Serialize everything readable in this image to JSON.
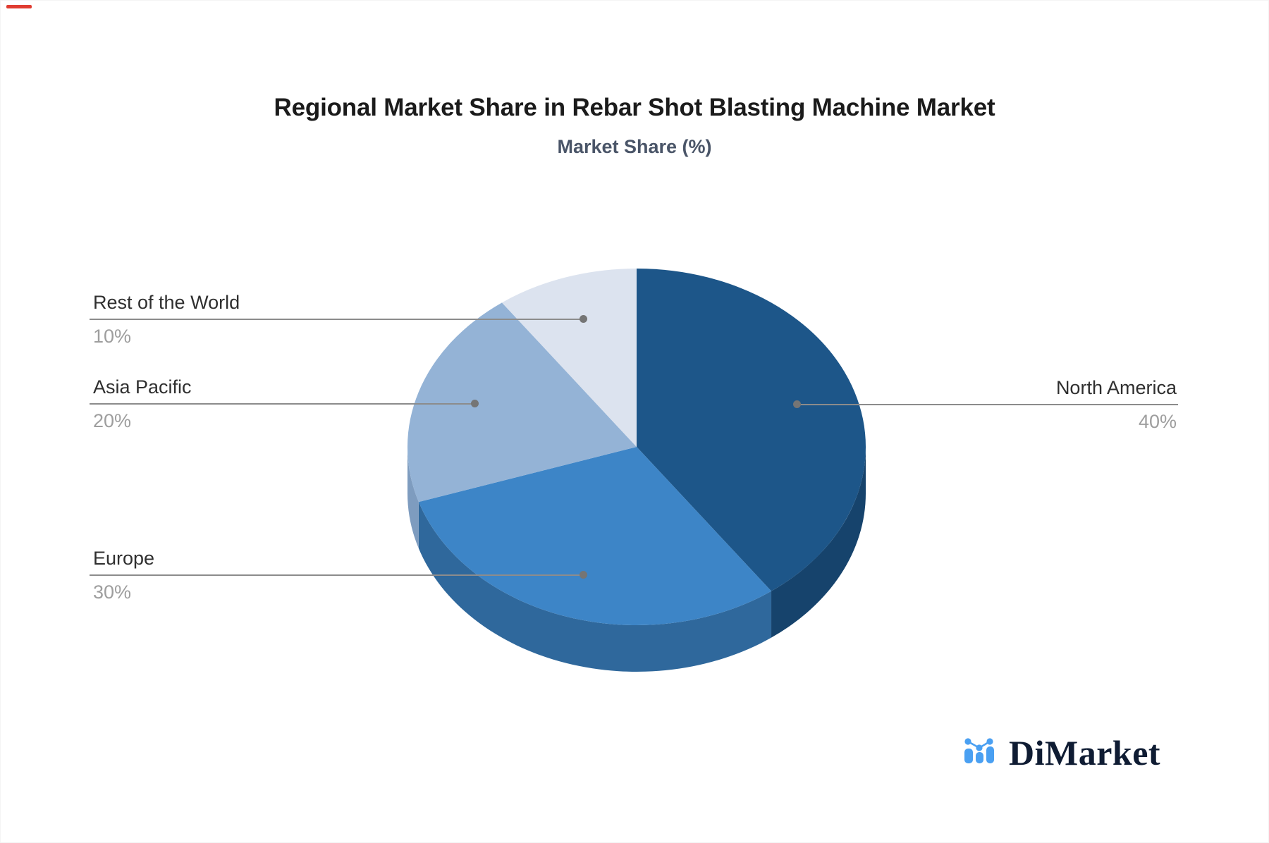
{
  "chart": {
    "title": "Regional Market Share in Rebar Shot Blasting Machine Market",
    "subtitle": "Market Share (%)"
  },
  "chart_data": {
    "type": "pie",
    "style": "3d",
    "title": "Regional Market Share in Rebar Shot Blasting Machine Market",
    "subtitle": "Market Share (%)",
    "unit": "%",
    "start_angle_deg": 0,
    "direction": "clockwise",
    "legend_position": "callout-labels",
    "slices": [
      {
        "label": "North America",
        "value": 40,
        "pct_label": "40%",
        "color": "#1D5689",
        "side_color": "#16436C",
        "callout_side": "right"
      },
      {
        "label": "Europe",
        "value": 30,
        "pct_label": "30%",
        "color": "#3D85C7",
        "side_color": "#2F689C",
        "callout_side": "left"
      },
      {
        "label": "Asia Pacific",
        "value": 20,
        "pct_label": "20%",
        "color": "#94B3D6",
        "side_color": "#7E9CBF",
        "callout_side": "left"
      },
      {
        "label": "Rest of the World",
        "value": 10,
        "pct_label": "10%",
        "color": "#DCE3EF",
        "side_color": "#C9D1E0",
        "callout_side": "left"
      }
    ]
  },
  "branding": {
    "logo_text": "DiMarket",
    "logo_text_color": "#0F1C33",
    "logo_accent_color": "#4AA0F2"
  },
  "colors": {
    "background": "#FFFFFF",
    "title": "#1B1B1B",
    "subtitle": "#4A5568",
    "callout_label": "#2F2F2F",
    "callout_pct": "#9E9E9E",
    "leader_line": "#8C8C8C",
    "leader_dot": "#757575"
  }
}
